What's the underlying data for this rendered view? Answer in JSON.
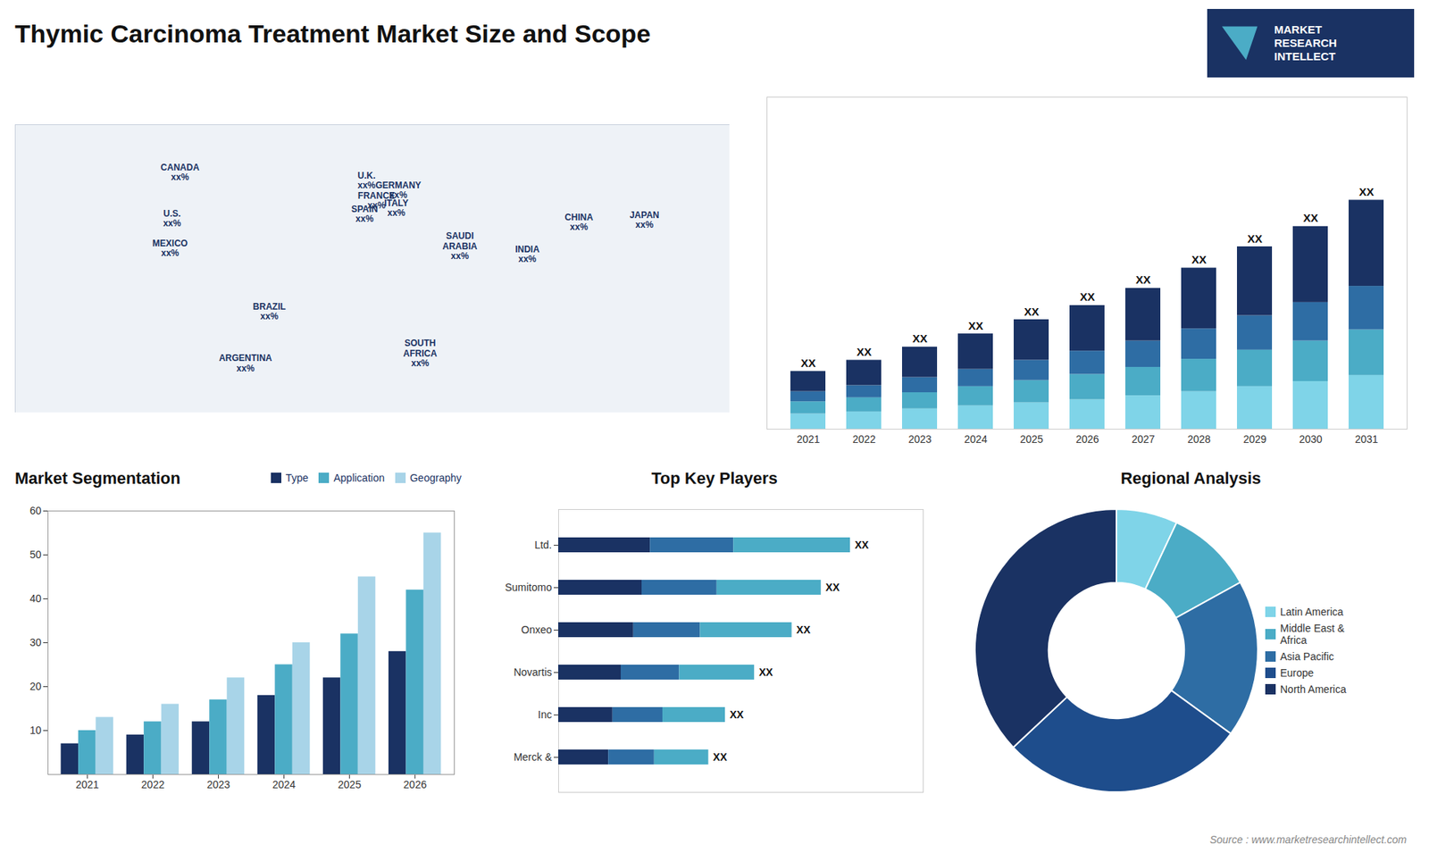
{
  "title": "Thymic Carcinoma Treatment Market Size and Scope",
  "annotations": [
    "Source : www.marketresearchintellect.com",
    "MARKET\nRESEARCH\nINTELLECT"
  ],
  "chart_data": [
    {
      "type": "map",
      "xlim": [
        -180,
        180
      ],
      "ylim": [
        -60,
        85
      ],
      "tick_labels": false,
      "annotations": [
        {
          "text": "CANADA\nxx%",
          "x": -97,
          "y": 61
        },
        {
          "text": "U.S.\nxx%",
          "x": -101,
          "y": 38
        },
        {
          "text": "MEXICO\nxx%",
          "x": -102,
          "y": 23
        },
        {
          "text": "BRAZIL\nxx%",
          "x": -52,
          "y": -9
        },
        {
          "text": "ARGENTINA\nxx%",
          "x": -64,
          "y": -35
        },
        {
          "text": "U.K.\nxx%",
          "x": -3,
          "y": 57
        },
        {
          "text": "FRANCE\nxx%",
          "x": 2,
          "y": 47
        },
        {
          "text": "GERMANY\nxx%",
          "x": 13,
          "y": 52
        },
        {
          "text": "SPAIN\nxx%",
          "x": -4,
          "y": 40
        },
        {
          "text": "ITALY\nxx%",
          "x": 12,
          "y": 43
        },
        {
          "text": "SAUDI\nARABIA\nxx%",
          "x": 44,
          "y": 24
        },
        {
          "text": "SOUTH\nAFRICA\nxx%",
          "x": 24,
          "y": -30
        },
        {
          "text": "CHINA\nxx%",
          "x": 104,
          "y": 36
        },
        {
          "text": "INDIA\nxx%",
          "x": 78,
          "y": 20
        },
        {
          "text": "JAPAN\nxx%",
          "x": 137,
          "y": 37
        }
      ]
    },
    {
      "type": "bar",
      "stacked": true,
      "tick_labels": "x",
      "categories": [
        2021,
        2022,
        2023,
        2024,
        2025,
        2026,
        2027,
        2028,
        2029,
        2030,
        2031
      ],
      "series": [
        {
          "color": "#7fd4e8",
          "values": [
            1.5,
            1.7,
            2.0,
            2.3,
            2.6,
            2.9,
            3.3,
            3.7,
            4.2,
            4.7,
            5.3
          ]
        },
        {
          "color": "#4bacc6",
          "values": [
            1.2,
            1.4,
            1.6,
            1.9,
            2.2,
            2.5,
            2.8,
            3.2,
            3.6,
            4.0,
            4.5
          ]
        },
        {
          "color": "#2e6da4",
          "values": [
            1.0,
            1.2,
            1.5,
            1.7,
            2.0,
            2.3,
            2.6,
            3.0,
            3.4,
            3.8,
            4.3
          ]
        },
        {
          "color": "#1a3263",
          "values": [
            2.0,
            2.5,
            3.0,
            3.5,
            4.0,
            4.5,
            5.2,
            6.0,
            6.8,
            7.5,
            8.5
          ]
        }
      ],
      "annotations": [
        "XX",
        "XX",
        "XX",
        "XX",
        "XX",
        "XX",
        "XX",
        "XX",
        "XX",
        "XX",
        "XX"
      ],
      "ylim": [
        0,
        32.77
      ]
    },
    {
      "type": "bar",
      "title": "Market Segmentation",
      "categories": [
        2021,
        2022,
        2023,
        2024,
        2025,
        2026
      ],
      "series": [
        {
          "name": "Type",
          "color": "#1a3263",
          "values": [
            7,
            9,
            12,
            18,
            22,
            28
          ]
        },
        {
          "name": "Application",
          "color": "#4bacc6",
          "values": [
            10,
            12,
            17,
            25,
            32,
            42
          ]
        },
        {
          "name": "Geography",
          "color": "#a8d4e8",
          "values": [
            13,
            16,
            22,
            30,
            45,
            55
          ]
        }
      ],
      "ylim": [
        0,
        60
      ],
      "yticks": [
        10,
        20,
        30,
        40,
        50,
        60
      ],
      "legend": "upper right"
    },
    {
      "type": "bar",
      "title": "Top Key Players",
      "orientation": "horizontal",
      "stacked": true,
      "tick_labels": "y",
      "categories": [
        "Ltd.",
        "Sumitomo",
        "Onxeo",
        "Novartis",
        "Inc",
        "Merck &"
      ],
      "series": [
        {
          "color": "#1a3263",
          "values": [
            2.2,
            2.0,
            1.8,
            1.5,
            1.3,
            1.2
          ]
        },
        {
          "color": "#2e6da4",
          "values": [
            2.0,
            1.8,
            1.6,
            1.4,
            1.2,
            1.1
          ]
        },
        {
          "color": "#4bacc6",
          "values": [
            2.8,
            2.5,
            2.2,
            1.8,
            1.5,
            1.3
          ]
        }
      ],
      "annotations": [
        "XX",
        "XX",
        "XX",
        "XX",
        "XX",
        "XX"
      ],
      "xlim": [
        0,
        8.75
      ]
    },
    {
      "type": "donut",
      "title": "Regional Analysis",
      "categories": [
        "Latin America",
        "Middle East &\nAfrica",
        "Asia Pacific",
        "Europe",
        "North America"
      ],
      "values": [
        7,
        10,
        18,
        28,
        37
      ],
      "colors": [
        "#7fd4e8",
        "#4bacc6",
        "#2e6da4",
        "#1e4d8c",
        "#1a3263"
      ],
      "legend": "right"
    }
  ]
}
